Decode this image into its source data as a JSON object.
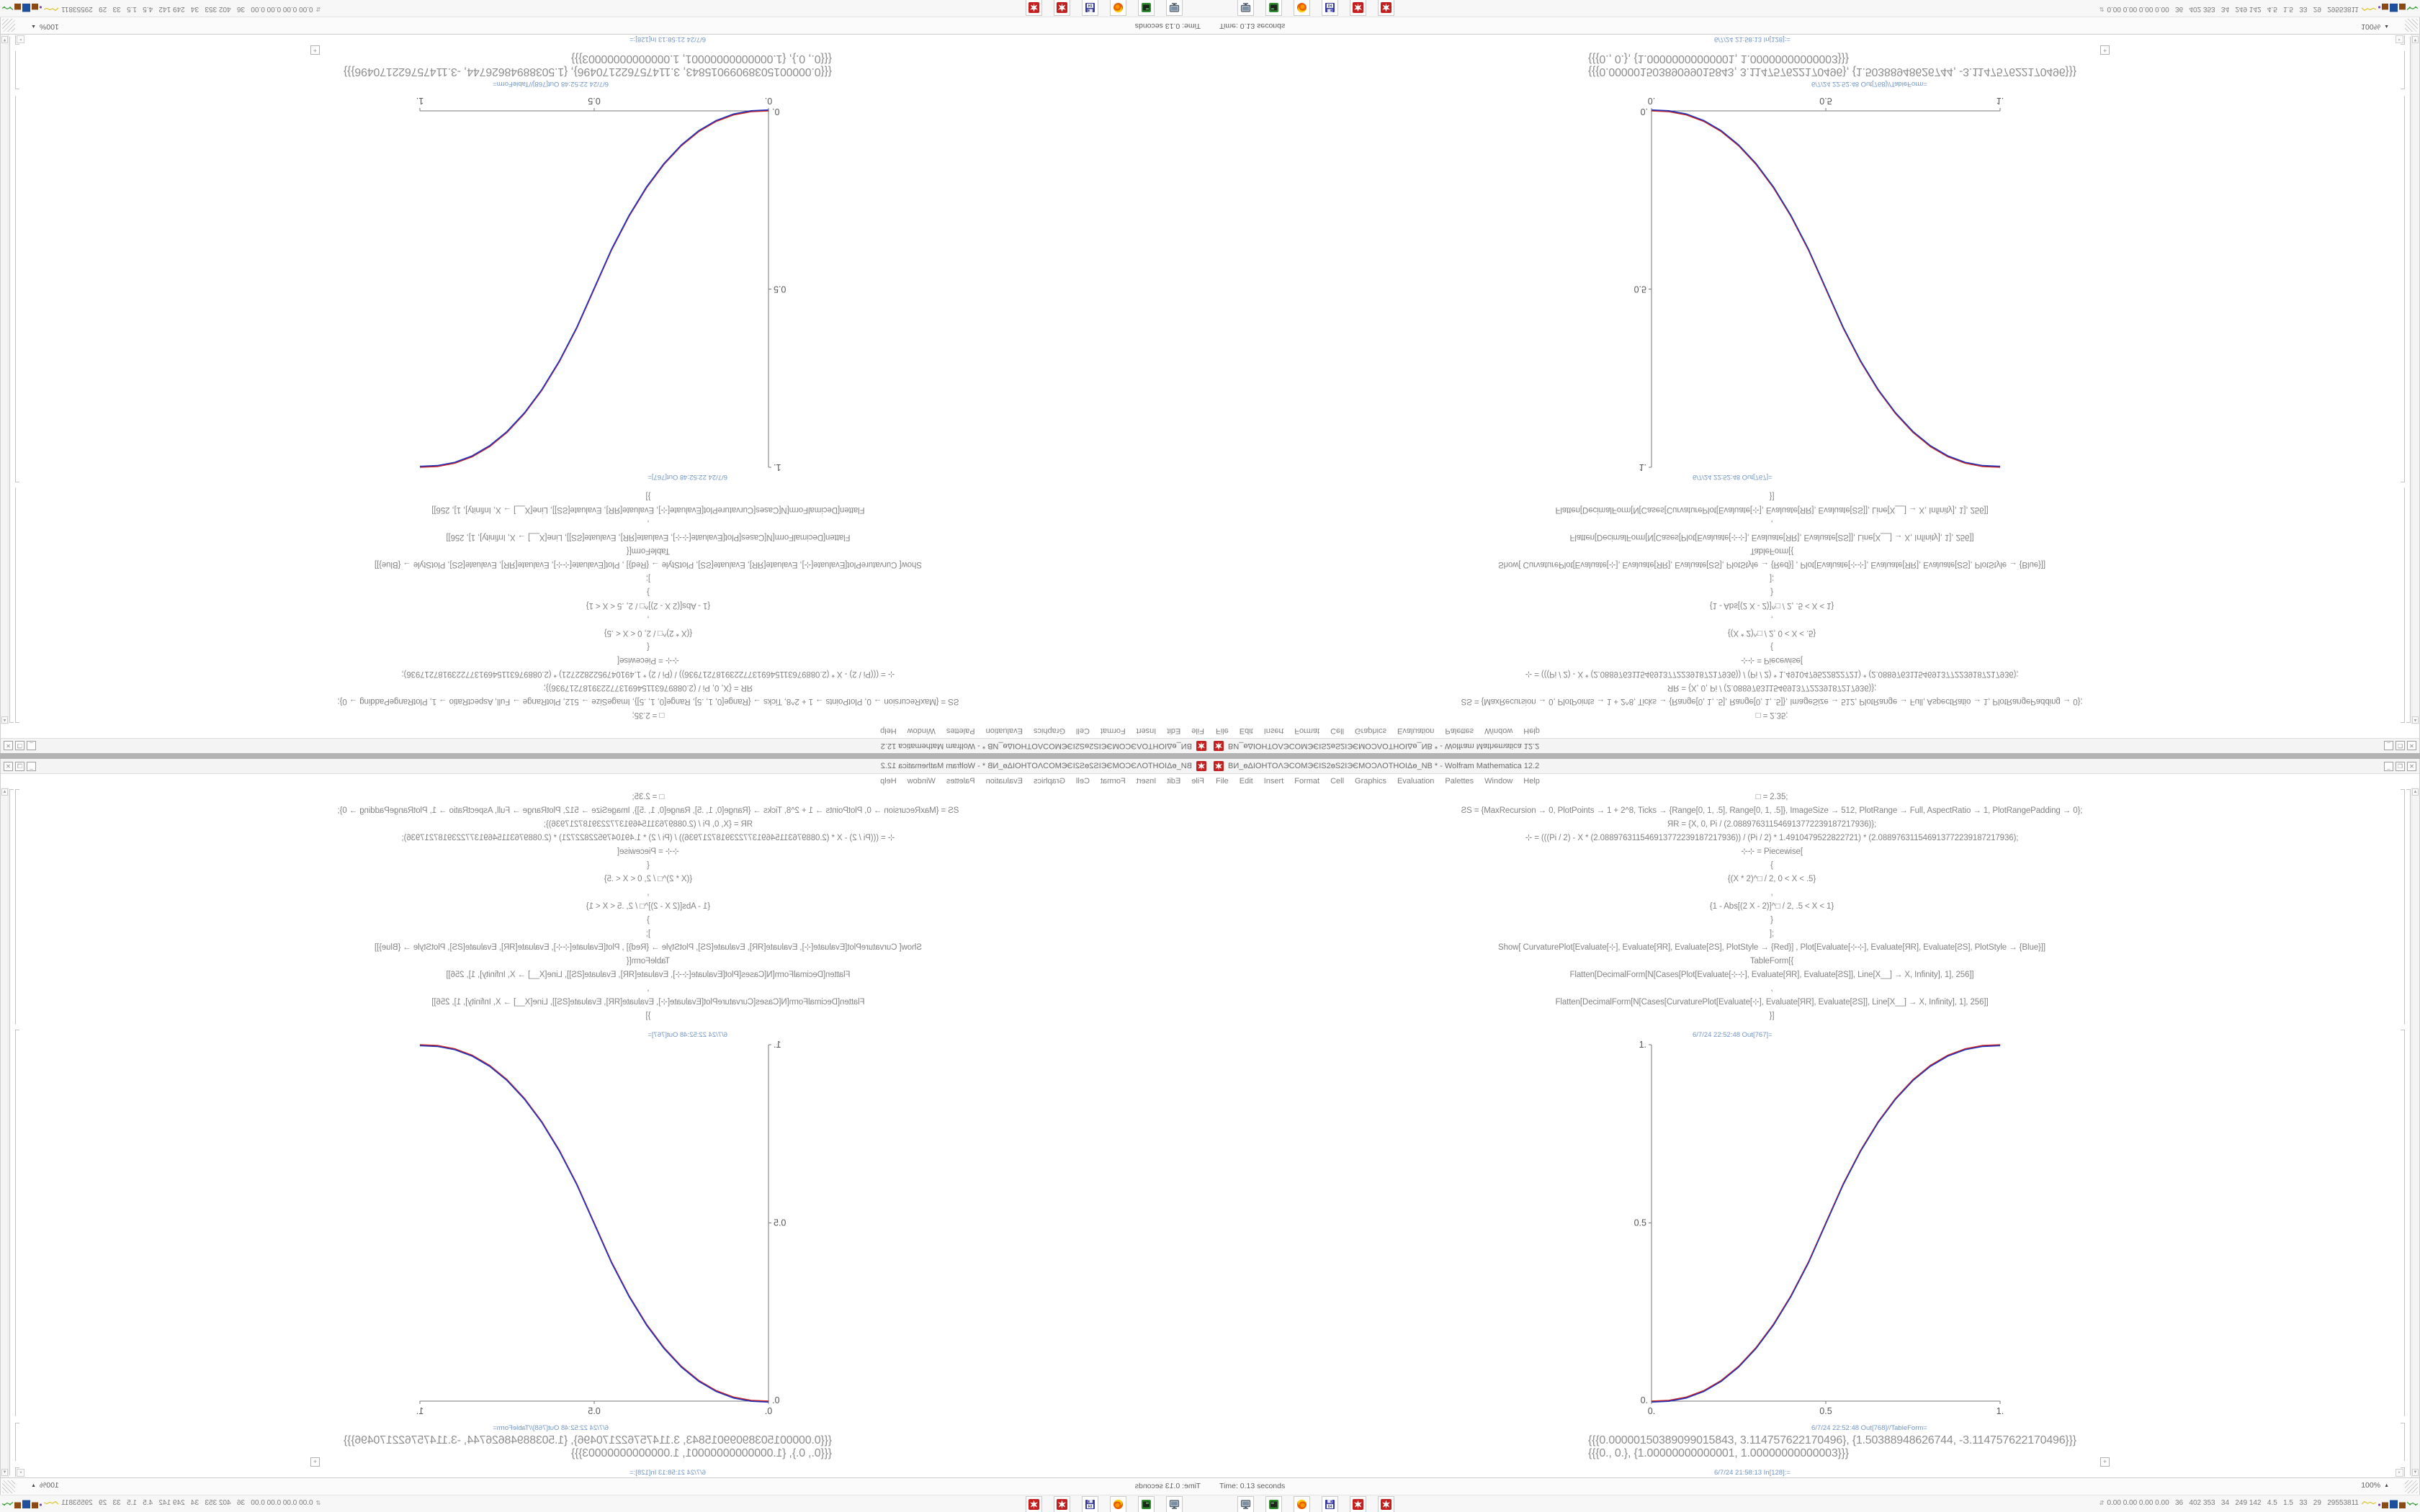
{
  "window": {
    "title": "ВИ_ѳΔIOHTOΛЭCOMЭЄIS2ѳS2IЭЄMOϽΛOTHOIΔѳ_NB * - Wolfram Mathematica 12.2",
    "app_icon": "mathematica-spikey",
    "controls": {
      "minimize": "_",
      "maximize": "❐",
      "close": "✕"
    },
    "menu": [
      "File",
      "Edit",
      "Insert",
      "Format",
      "Cell",
      "Graphics",
      "Evaluation",
      "Palettes",
      "Window",
      "Help"
    ],
    "accent_red": "#c41e1e"
  },
  "notebook": {
    "code_lines": [
      "□ = 2.35;",
      "ƧS = {MaxRecursion → 0, PlotPoints → 1 + 2^8, Ticks → {Range[0, 1, .5], Range[0, 1, .5]}, ImageSize → 512, PlotRange → Full, AspectRatio → 1, PlotRangePadding → 0};",
      "ЯR = {X, 0, Pi / (2.088976311546913772239187217936)};",
      "⊹ = (((Pi / 2) - X * (2.088976311546913772239187217936)) / (Pi / 2) * 1.4910479522822721) * (2.088976311546913772239187217936);",
      "⊹⊹ = Piecewise[",
      "{",
      "{(X * 2)^□ / 2, 0 < X < .5}",
      ",",
      "{1 - Abs[(2 X - 2)]^□ / 2, .5 < X < 1}",
      "}",
      "];",
      "Show[  CurvaturePlot[Evaluate[⊹], Evaluate[ЯR], Evaluate[ƧS], PlotStyle → {Red}]  ,  Plot[Evaluate[⊹⊹], Evaluate[ЯR], Evaluate[ƧS],  PlotStyle → {Blue}]]",
      "TableForm[{",
      "Flatten[DecimalForm[N[Cases[Plot[Evaluate[⊹⊹], Evaluate[ЯR], Evaluate[ƧS]], Line[X__] → X, Infinity], 1], 256]]",
      ",",
      "Flatten[DecimalForm[N[Cases[CurvaturePlot[Evaluate[⊹], Evaluate[ЯR], Evaluate[ƧS]], Line[X__] → X, Infinity], 1], 256]]",
      "}]"
    ],
    "out_plot_label": "6/7/24 22:52:48 Out[767]=",
    "out_table_label": "6/7/24 22:52:48 Out[768]//TableForm=",
    "table_lines": [
      "{{{0.00000150389099015843, 3.114757622170496}, {1.50388948626744, -3.114757622170496}}}",
      "{{{0., 0.}, {1.00000000000001, 1.00000000000003}}}"
    ],
    "in_label": "6/7/24 21:58:13 In[128]:=",
    "plus_box": "+"
  },
  "chart_data": {
    "type": "line",
    "title": "",
    "xlabel": "",
    "ylabel": "",
    "xlim": [
      0,
      1
    ],
    "ylim": [
      0,
      1
    ],
    "grid": false,
    "legend": "none",
    "xticks": {
      "values": [
        0,
        0.5,
        1
      ],
      "labels": [
        "0.",
        "0.5",
        "1."
      ]
    },
    "yticks": {
      "values": [
        0,
        0.5,
        1
      ],
      "labels": [
        "0.",
        "0.5",
        "1."
      ]
    },
    "x": [
      0,
      0.05,
      0.1,
      0.15,
      0.2,
      0.25,
      0.3,
      0.35,
      0.4,
      0.45,
      0.5,
      0.55,
      0.6,
      0.65,
      0.7,
      0.75,
      0.8,
      0.85,
      0.9,
      0.95,
      1
    ],
    "series": [
      {
        "name": "CurvaturePlot (Red)",
        "color": "#cc2222",
        "y": [
          0,
          0.0022,
          0.0114,
          0.0295,
          0.058,
          0.098,
          0.1506,
          0.216,
          0.296,
          0.39,
          0.5,
          0.61,
          0.704,
          0.784,
          0.8494,
          0.902,
          0.942,
          0.9705,
          0.9886,
          0.9978,
          1
        ]
      },
      {
        "name": "Plot Piecewise (Blue)",
        "color": "#2233bb",
        "y": [
          0,
          0.0022,
          0.0114,
          0.0295,
          0.058,
          0.098,
          0.1506,
          0.216,
          0.296,
          0.39,
          0.5,
          0.61,
          0.704,
          0.784,
          0.8494,
          0.902,
          0.942,
          0.9705,
          0.9886,
          0.9978,
          1
        ]
      }
    ]
  },
  "statusbar": {
    "time_text": "Time: 0.13 seconds",
    "zoom": "100%"
  },
  "taskbar": {
    "icons": [
      "computer",
      "terminal",
      "firefox",
      "floppy-64",
      "mathematica",
      "mathematica"
    ],
    "floppy_label": "64",
    "monitor_prefix": "⇵",
    "monitor_text": "0.00 0.00 0.00 0.00   36   402 353   34   249 142   4.5   1.5   33   29   29553811",
    "graph_colors": [
      "#d9c422",
      "#7a3fa8",
      "#8b4a13",
      "#1e4f9c",
      "#8b4a13",
      "#2e9e2e"
    ]
  }
}
